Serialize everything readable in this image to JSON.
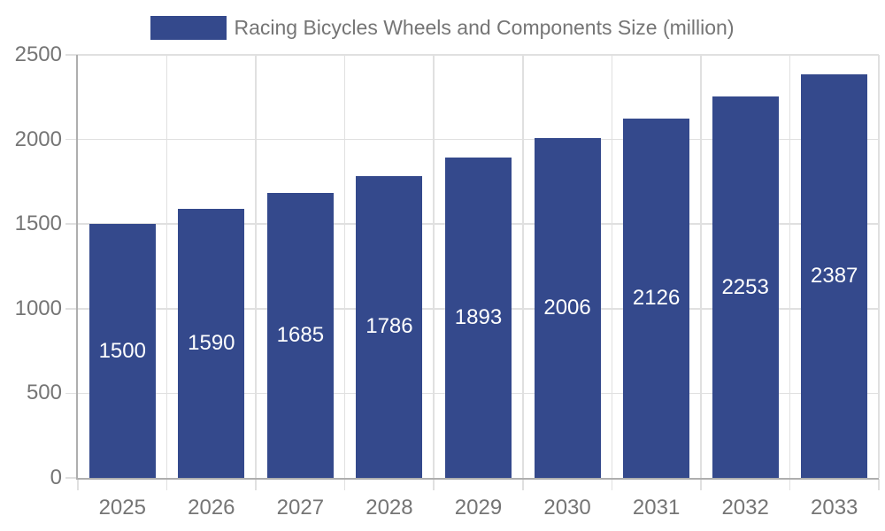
{
  "chart_data": {
    "type": "bar",
    "title": "Racing Bicycles Wheels and Components Size (million)",
    "categories": [
      "2025",
      "2026",
      "2027",
      "2028",
      "2029",
      "2030",
      "2031",
      "2032",
      "2033"
    ],
    "values": [
      1500,
      1590,
      1685,
      1786,
      1893,
      2006,
      2126,
      2253,
      2387
    ],
    "xlabel": "",
    "ylabel": "",
    "ylim": [
      0,
      2500
    ],
    "yticks": [
      0,
      500,
      1000,
      1500,
      2000,
      2500
    ],
    "grid": true,
    "legend_position": "top-center",
    "value_labels": "inside-bar-centered",
    "colors": {
      "bar": "#34498c",
      "value_text": "#ffffff",
      "axis_text": "#757575",
      "title_text": "#757575",
      "grid_line": "#e0e0e0",
      "axis_line": "#aeaeae",
      "background": "#ffffff"
    }
  }
}
